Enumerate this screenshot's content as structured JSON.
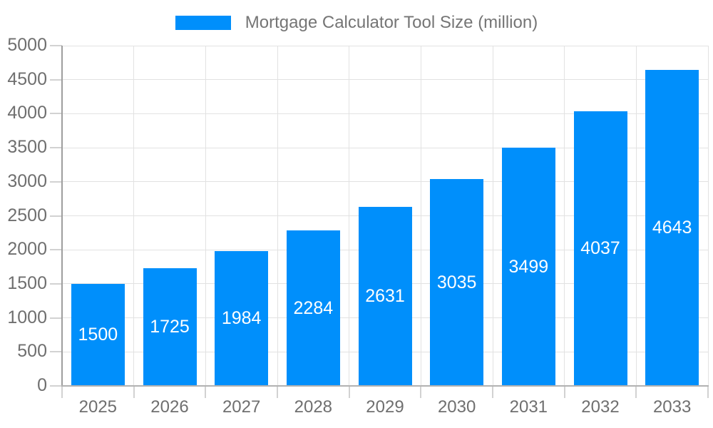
{
  "legend": {
    "label": "Mortgage Calculator Tool Size (million)"
  },
  "chart_data": {
    "type": "bar",
    "title": "Mortgage Calculator Tool Size (million)",
    "series_name": "Mortgage Calculator Tool Size (million)",
    "categories": [
      "2025",
      "2026",
      "2027",
      "2028",
      "2029",
      "2030",
      "2031",
      "2032",
      "2033"
    ],
    "values": [
      1500,
      1725,
      1984,
      2284,
      2631,
      3035,
      3499,
      4037,
      4643
    ],
    "bar_labels": [
      "1500",
      "1725",
      "1984",
      "2284",
      "2631",
      "3035",
      "3499",
      "4037",
      "4643"
    ],
    "yticks": [
      0,
      500,
      1000,
      1500,
      2000,
      2500,
      3000,
      3500,
      4000,
      4500,
      5000
    ],
    "ylim": [
      0,
      5000
    ],
    "xlabel": "",
    "ylabel": "",
    "grid": true,
    "legend_position": "top-center",
    "colors": {
      "bar": "#008ffb",
      "bar_label": "#ffffff",
      "title": "#757575",
      "tick_label": "#6f6f6f",
      "grid": "#e2e2e2",
      "y_axis_line": "#9e9e9e",
      "x_axis_line": "#b2b2b2",
      "tick_mark": "#d2d2d2",
      "background": "#ffffff"
    }
  }
}
